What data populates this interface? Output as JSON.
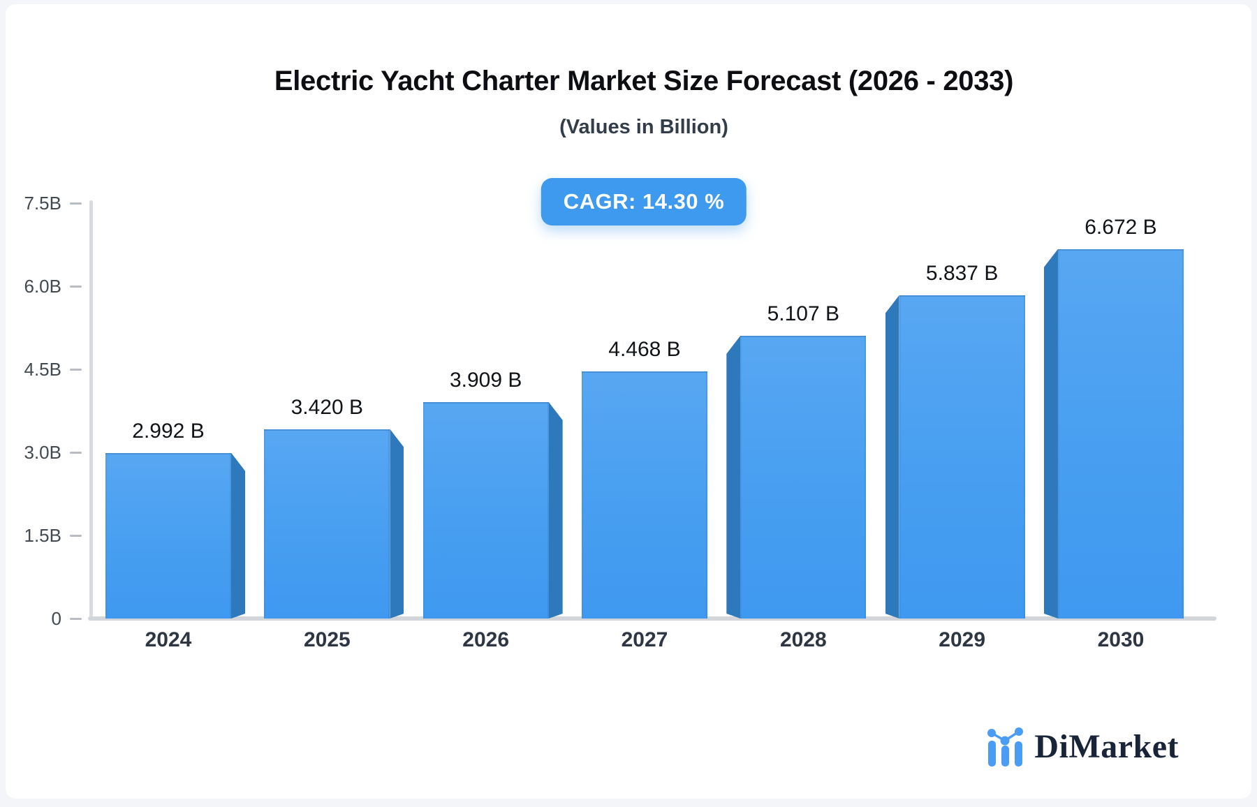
{
  "page": {
    "background": "#f3f5f8",
    "card_background": "#ffffff"
  },
  "header": {
    "title": "Electric Yacht Charter Market Size Forecast (2026 - 2033)",
    "subtitle": "(Values in Billion)"
  },
  "badge": {
    "label": "CAGR: 14.30 %",
    "background": "#3e9aef",
    "text_color": "#ffffff"
  },
  "chart_data": {
    "type": "bar",
    "title": "Electric Yacht Charter Market Size Forecast (2026 - 2033)",
    "subtitle": "(Values in Billion)",
    "unit": "Billion",
    "categories": [
      "2024",
      "2025",
      "2026",
      "2027",
      "2028",
      "2029",
      "2030"
    ],
    "values": [
      2.992,
      3.42,
      3.909,
      4.468,
      5.107,
      5.837,
      6.672
    ],
    "value_labels": [
      "2.992 B",
      "3.420 B",
      "3.909 B",
      "4.468 B",
      "5.107 B",
      "5.837 B",
      "6.672 B"
    ],
    "ylim": [
      0,
      7.5
    ],
    "yticks": [
      0,
      1.5,
      3.0,
      4.5,
      6.0,
      7.5
    ],
    "ytick_labels": [
      "0",
      "1.5B",
      "3.0B",
      "4.5B",
      "6.0B",
      "7.5B"
    ],
    "grid": false,
    "legend": false,
    "xlabel": "",
    "ylabel": "",
    "bar_color_top": "#58a7f2",
    "bar_color_bottom": "#3f99f0",
    "bar_side_color": "#2e79bc",
    "axis_color": "#d6d9dd"
  },
  "footer": {
    "brand": "DiMarket",
    "logo_icon": "bar-chart-logo-icon",
    "brand_color": "#1a2438",
    "icon_color": "#4a9cf5"
  }
}
